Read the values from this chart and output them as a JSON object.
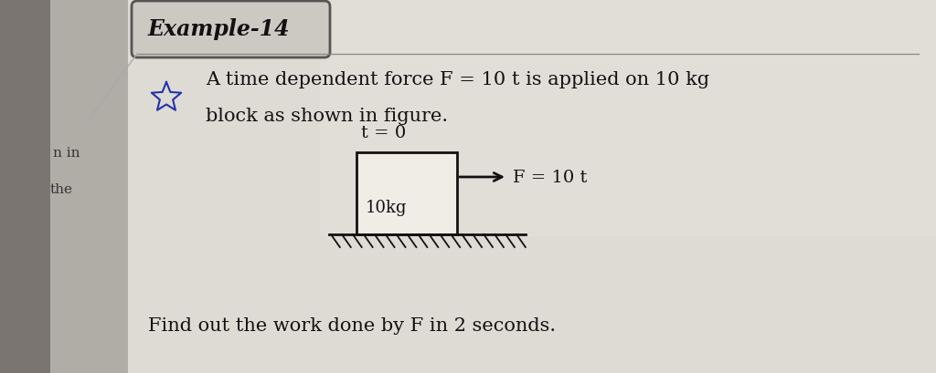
{
  "title": "Example-14",
  "line1": "A time dependent force F = 10 t is applied on 10 kg",
  "line2": "block as shown in figure.",
  "block_label": "10kg",
  "time_label": "t = 0",
  "force_label": "F = 10 t",
  "question": "Find out the work done by F in 2 seconds.",
  "bg_color_main": "#d4d0cc",
  "bg_color_page": "#e8e4df",
  "bg_color_left": "#9a9590",
  "text_color": "#111111",
  "box_color": "#111111",
  "left_text1": "n in",
  "left_text2": "the",
  "title_fontsize": 17,
  "body_fontsize": 15,
  "diagram_fontsize": 14,
  "question_fontsize": 15
}
